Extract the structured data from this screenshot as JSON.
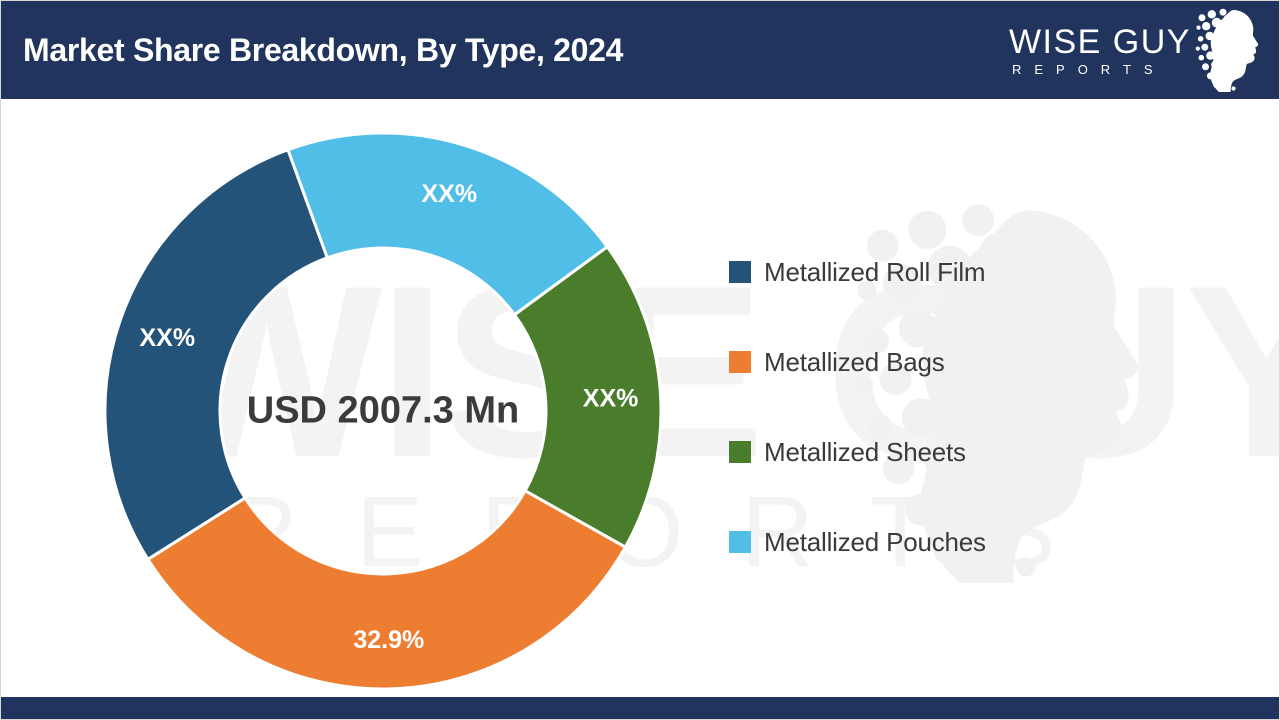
{
  "header": {
    "title": "Market Share Breakdown, By Type, 2024",
    "logo": {
      "name": "WISE GUY",
      "subtitle": "REPORTS"
    }
  },
  "watermark": {
    "line1": "WISE GUY",
    "line2": "REPORTS"
  },
  "chart_data": {
    "type": "donut",
    "title": "Market Share Breakdown, By Type, 2024",
    "center_label": "USD 2007.3 Mn",
    "total_value": 2007.3,
    "units": "USD Mn",
    "start_angle_deg": -20,
    "segments": [
      {
        "name": "Metallized Pouches",
        "label": "XX%",
        "share_pct_est": 20.5,
        "color": "#51BEE7"
      },
      {
        "name": "Metallized Sheets",
        "label": "XX%",
        "share_pct_est": 18.2,
        "color": "#4A7D2B"
      },
      {
        "name": "Metallized Bags",
        "label": "32.9%",
        "share_pct_est": 32.9,
        "color": "#ED7D31"
      },
      {
        "name": "Metallized Roll Film",
        "label": "XX%",
        "share_pct_est": 28.4,
        "color": "#245379"
      }
    ],
    "legend_position": "right",
    "legend_order": [
      "Metallized Roll Film",
      "Metallized Bags",
      "Metallized Sheets",
      "Metallized Pouches"
    ]
  },
  "colors": {
    "header_bg": "#21345E",
    "footer_bg": "#21345E",
    "slice_label": "#FFFFFF",
    "center_text": "#3B3B3B",
    "legend_text": "#3A3A3A",
    "watermark": "#F2F2F2",
    "separator": "#FFFFFF"
  }
}
